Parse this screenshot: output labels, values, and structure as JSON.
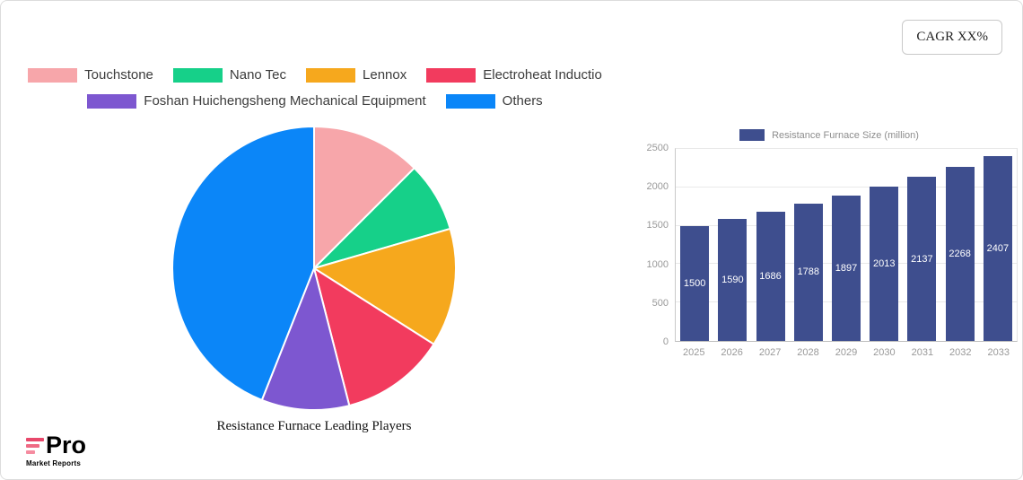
{
  "cagr": {
    "label": "CAGR XX%"
  },
  "logo": {
    "name": "Pro",
    "subtitle": "Market Reports"
  },
  "chart_data": [
    {
      "type": "pie",
      "title": "Resistance Furnace Leading Players",
      "labels": [
        "Touchstone",
        "Nano Tec",
        "Lennox",
        "Electroheat Inductio",
        "Foshan Huichengsheng Mechanical Equipment",
        "Others"
      ],
      "values": [
        12.5,
        8,
        13.5,
        12,
        10,
        44
      ],
      "colors": [
        "#f7a6aa",
        "#16d089",
        "#f6a81d",
        "#f23b5e",
        "#7d57d0",
        "#0b86f8"
      ],
      "legend_position": "top"
    },
    {
      "type": "bar",
      "legend": "Resistance Furnace Size (million)",
      "categories": [
        "2025",
        "2026",
        "2027",
        "2028",
        "2029",
        "2030",
        "2031",
        "2032",
        "2033"
      ],
      "values": [
        1500,
        1590,
        1686,
        1788,
        1897,
        2013,
        2137,
        2268,
        2407
      ],
      "bar_color": "#3e4e8e",
      "ylim": [
        0,
        2500
      ],
      "yticks": [
        0,
        500,
        1000,
        1500,
        2000,
        2500
      ],
      "grid": true,
      "value_labels": "inside-center-white"
    }
  ]
}
